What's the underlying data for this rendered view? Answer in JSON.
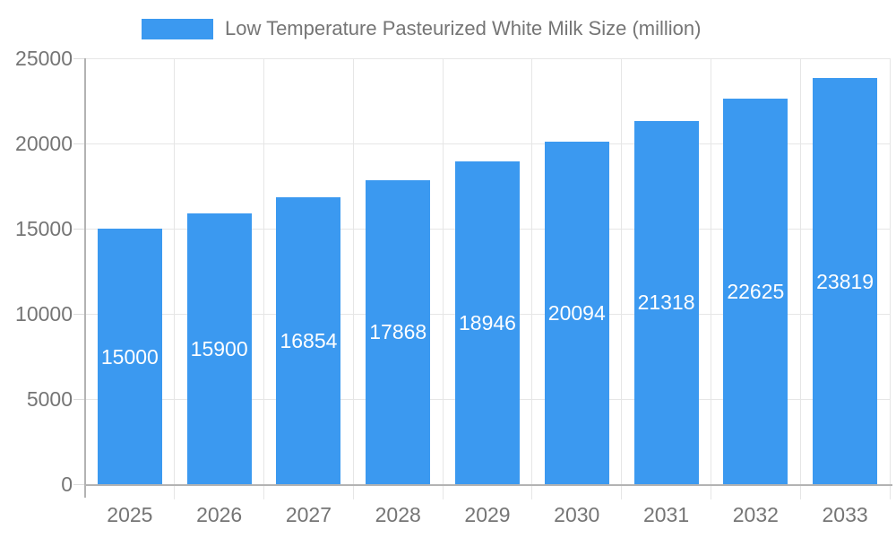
{
  "legend": {
    "label": "Low Temperature Pasteurized White Milk Size (million)"
  },
  "chart_data": {
    "type": "bar",
    "title": "Low Temperature Pasteurized White Milk Size (million)",
    "categories": [
      "2025",
      "2026",
      "2027",
      "2028",
      "2029",
      "2030",
      "2031",
      "2032",
      "2033"
    ],
    "values": [
      15000,
      15900,
      16854,
      17868,
      18946,
      20094,
      21318,
      22625,
      23819
    ],
    "xlabel": "",
    "ylabel": "",
    "ylim": [
      0,
      25000
    ],
    "yticks": [
      0,
      5000,
      10000,
      15000,
      20000,
      25000
    ],
    "grid": true,
    "legend_position": "top",
    "bar_labels_visible": true,
    "colors": {
      "bar": "#3B99F0",
      "bar_label": "#FFFFFF",
      "axis_text": "#757575",
      "axis_line": "#B3B3B3",
      "gridline": "#E6E6E6",
      "tick": "#DCDCDC"
    }
  }
}
